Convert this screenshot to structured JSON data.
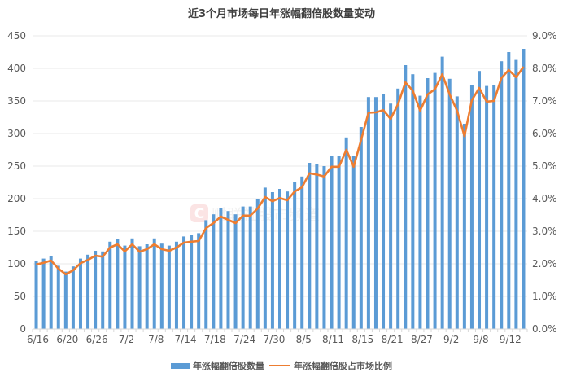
{
  "chart_data": {
    "type": "bar+line",
    "title": "近3个月市场每日年涨幅翻倍股数量变动",
    "xlabel": "",
    "ylabel_left": "",
    "ylabel_right": "",
    "ylim_left": [
      0,
      450
    ],
    "ylim_right": [
      0,
      9.0
    ],
    "left_ticks": [
      "0",
      "50",
      "100",
      "150",
      "200",
      "250",
      "300",
      "350",
      "400",
      "450"
    ],
    "right_ticks": [
      "0.0%",
      "1.0%",
      "2.0%",
      "3.0%",
      "4.0%",
      "5.0%",
      "6.0%",
      "7.0%",
      "8.0%",
      "9.0%"
    ],
    "grid": true,
    "legend_position": "bottom",
    "x_tick_labels": [
      "6/16",
      "6/20",
      "6/26",
      "7/2",
      "7/8",
      "7/14",
      "7/18",
      "7/24",
      "7/30",
      "8/5",
      "8/11",
      "8/15",
      "8/21",
      "8/27",
      "9/2",
      "9/8",
      "9/12"
    ],
    "x_tick_every": 4,
    "series": [
      {
        "name": "年涨幅翻倍股数量",
        "type": "bar",
        "axis": "left",
        "color": "#5B9BD5",
        "values": [
          104,
          108,
          112,
          97,
          88,
          96,
          108,
          114,
          120,
          119,
          134,
          138,
          128,
          139,
          127,
          130,
          139,
          131,
          128,
          134,
          142,
          145,
          147,
          167,
          176,
          186,
          181,
          176,
          188,
          188,
          199,
          217,
          210,
          215,
          211,
          226,
          234,
          255,
          253,
          250,
          265,
          265,
          294,
          265,
          310,
          356,
          356,
          360,
          346,
          369,
          405,
          391,
          358,
          385,
          393,
          418,
          384,
          357,
          315,
          375,
          396,
          373,
          374,
          411,
          425,
          413,
          430
        ]
      },
      {
        "name": "年涨幅翻倍股占市场比例",
        "type": "line",
        "axis": "right",
        "color": "#ED7D31",
        "values": [
          1.98,
          2.03,
          2.1,
          1.85,
          1.68,
          1.8,
          2.02,
          2.12,
          2.25,
          2.22,
          2.5,
          2.6,
          2.38,
          2.6,
          2.37,
          2.45,
          2.6,
          2.45,
          2.4,
          2.5,
          2.65,
          2.68,
          2.7,
          3.1,
          3.25,
          3.45,
          3.35,
          3.25,
          3.48,
          3.48,
          3.7,
          4.05,
          3.92,
          4.02,
          3.95,
          4.22,
          4.35,
          4.78,
          4.74,
          4.68,
          4.98,
          4.98,
          5.5,
          4.98,
          5.8,
          6.64,
          6.65,
          6.72,
          6.45,
          6.9,
          7.57,
          7.32,
          6.7,
          7.2,
          7.36,
          7.82,
          7.2,
          6.7,
          5.92,
          7.02,
          7.4,
          6.98,
          7.0,
          7.7,
          7.95,
          7.73,
          8.05
        ]
      }
    ]
  },
  "legend": {
    "bar_label": "年涨幅翻倍股数量",
    "line_label": "年涨幅翻倍股占市场比例"
  },
  "watermark": "财联社股市频道",
  "colors": {
    "bar": "#5B9BD5",
    "line": "#ED7D31",
    "grid": "#E8E8E8",
    "axis_text": "#595959"
  }
}
